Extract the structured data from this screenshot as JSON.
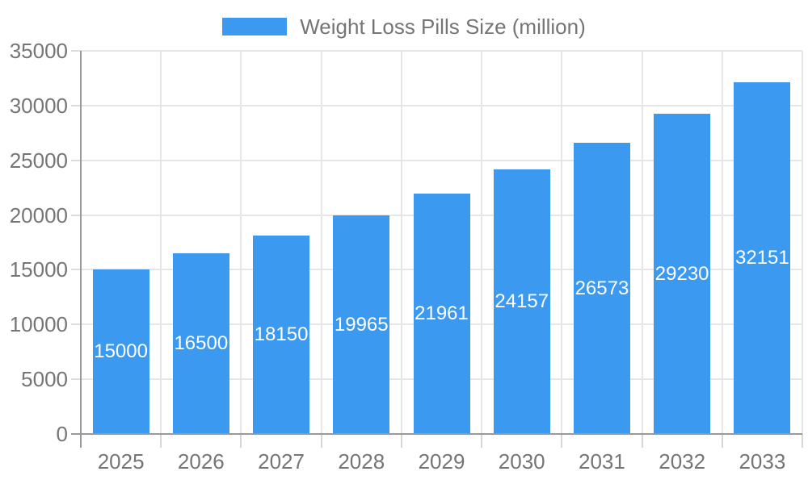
{
  "legend": {
    "label": "Weight Loss Pills Size (million)"
  },
  "chart_data": {
    "type": "bar",
    "title": "Weight Loss Pills Size (million)",
    "categories": [
      "2025",
      "2026",
      "2027",
      "2028",
      "2029",
      "2030",
      "2031",
      "2032",
      "2033"
    ],
    "series": [
      {
        "name": "Weight Loss Pills Size (million)",
        "values": [
          15000,
          16500,
          18150,
          19965,
          21961,
          24157,
          26573,
          29230,
          32151
        ]
      }
    ],
    "value_labels": [
      "15000",
      "16500",
      "18150",
      "19965",
      "21961",
      "24157",
      "26573",
      "29230",
      "32151"
    ],
    "value_label_position": "inside-center",
    "xlabel": "",
    "ylabel": "",
    "ylim": [
      0,
      35000
    ],
    "yticks": [
      0,
      5000,
      10000,
      15000,
      20000,
      25000,
      30000,
      35000
    ],
    "ytick_labels": [
      "0",
      "5000",
      "10000",
      "15000",
      "20000",
      "25000",
      "30000",
      "35000"
    ],
    "grid": true,
    "legend_position": "top"
  },
  "colors": {
    "bar": "#3b99ef",
    "axis_line": "#999999",
    "gridline": "#e6e6e6",
    "tick": "#dcdcdc",
    "label_text": "#757575",
    "bar_label_text": "#ffffff",
    "background": "#ffffff"
  }
}
